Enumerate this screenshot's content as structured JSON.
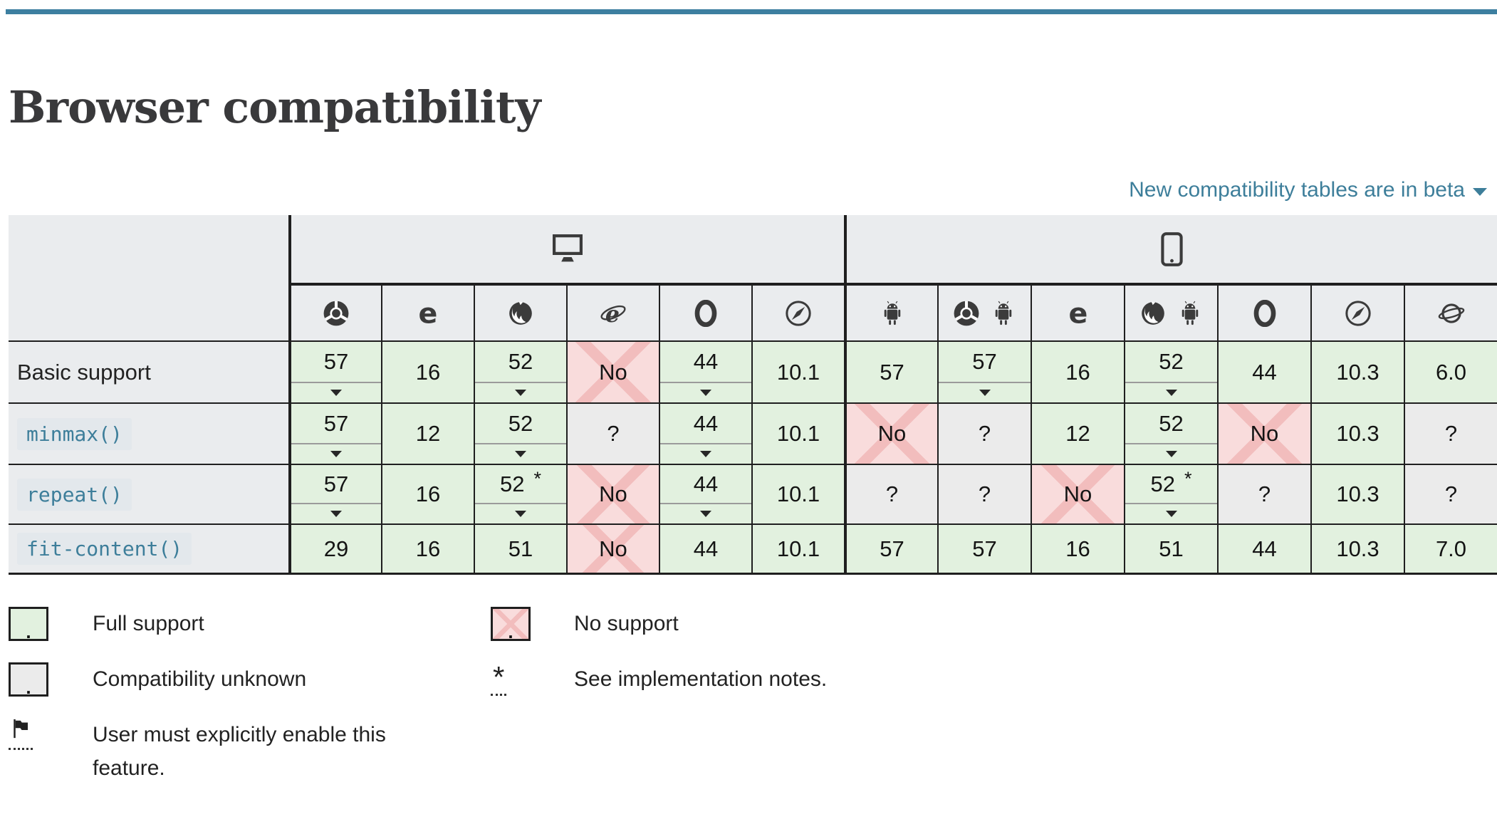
{
  "page": {
    "title": "Browser compatibility",
    "beta_link": {
      "label": "New compatibility tables are in beta",
      "icon": "caret-down-icon"
    }
  },
  "colors": {
    "accent_bar": "#3d7fa0",
    "link": "#3d7e9a",
    "full_support_bg": "#e2f1df",
    "no_support_bg": "#f9dcdc",
    "no_support_x": "#f2bdbd",
    "unknown_bg": "#ebebeb",
    "header_bg": "#eaecee",
    "border": "#1f1f1f"
  },
  "table": {
    "sections": [
      {
        "id": "desktop",
        "icon": "desktop-icon",
        "col_span": 6
      },
      {
        "id": "mobile",
        "icon": "mobile-icon",
        "col_span": 7
      }
    ],
    "columns": [
      {
        "id": "chrome",
        "section": "desktop",
        "icons": [
          "chrome"
        ]
      },
      {
        "id": "edge",
        "section": "desktop",
        "icons": [
          "edge"
        ]
      },
      {
        "id": "firefox",
        "section": "desktop",
        "icons": [
          "firefox"
        ]
      },
      {
        "id": "ie",
        "section": "desktop",
        "icons": [
          "ie"
        ]
      },
      {
        "id": "opera",
        "section": "desktop",
        "icons": [
          "opera"
        ]
      },
      {
        "id": "safari",
        "section": "desktop",
        "icons": [
          "safari"
        ]
      },
      {
        "id": "webview-android",
        "section": "mobile",
        "icons": [
          "android"
        ]
      },
      {
        "id": "chrome-android",
        "section": "mobile",
        "icons": [
          "chrome",
          "android"
        ]
      },
      {
        "id": "edge-mobile",
        "section": "mobile",
        "icons": [
          "edge"
        ]
      },
      {
        "id": "firefox-android",
        "section": "mobile",
        "icons": [
          "firefox",
          "android"
        ]
      },
      {
        "id": "opera-android",
        "section": "mobile",
        "icons": [
          "opera"
        ]
      },
      {
        "id": "safari-ios",
        "section": "mobile",
        "icons": [
          "safari"
        ]
      },
      {
        "id": "samsung-internet",
        "section": "mobile",
        "icons": [
          "samsung"
        ]
      }
    ],
    "rows": [
      {
        "id": "basic_support",
        "label": "Basic support",
        "label_style": "plain",
        "cells": [
          {
            "value": "57",
            "status": "full",
            "history": true
          },
          {
            "value": "16",
            "status": "full",
            "history": false
          },
          {
            "value": "52",
            "status": "full",
            "history": true
          },
          {
            "value": "No",
            "status": "none",
            "history": false
          },
          {
            "value": "44",
            "status": "full",
            "history": true
          },
          {
            "value": "10.1",
            "status": "full",
            "history": false
          },
          {
            "value": "57",
            "status": "full",
            "history": false
          },
          {
            "value": "57",
            "status": "full",
            "history": true
          },
          {
            "value": "16",
            "status": "full",
            "history": false
          },
          {
            "value": "52",
            "status": "full",
            "history": true
          },
          {
            "value": "44",
            "status": "full",
            "history": false
          },
          {
            "value": "10.3",
            "status": "full",
            "history": false
          },
          {
            "value": "6.0",
            "status": "full",
            "history": false
          }
        ]
      },
      {
        "id": "minmax",
        "label": "minmax()",
        "label_style": "code",
        "cells": [
          {
            "value": "57",
            "status": "full",
            "history": true
          },
          {
            "value": "12",
            "status": "full",
            "history": false
          },
          {
            "value": "52",
            "status": "full",
            "history": true
          },
          {
            "value": "?",
            "status": "unknown",
            "history": false
          },
          {
            "value": "44",
            "status": "full",
            "history": true
          },
          {
            "value": "10.1",
            "status": "full",
            "history": false
          },
          {
            "value": "No",
            "status": "none",
            "history": false
          },
          {
            "value": "?",
            "status": "unknown",
            "history": false
          },
          {
            "value": "12",
            "status": "full",
            "history": false
          },
          {
            "value": "52",
            "status": "full",
            "history": true
          },
          {
            "value": "No",
            "status": "none",
            "history": false
          },
          {
            "value": "10.3",
            "status": "full",
            "history": false
          },
          {
            "value": "?",
            "status": "unknown",
            "history": false
          }
        ]
      },
      {
        "id": "repeat",
        "label": "repeat()",
        "label_style": "code",
        "cells": [
          {
            "value": "57",
            "status": "full",
            "history": true
          },
          {
            "value": "16",
            "status": "full",
            "history": false
          },
          {
            "value": "52",
            "status": "full",
            "history": true,
            "note": true
          },
          {
            "value": "No",
            "status": "none",
            "history": false
          },
          {
            "value": "44",
            "status": "full",
            "history": true
          },
          {
            "value": "10.1",
            "status": "full",
            "history": false
          },
          {
            "value": "?",
            "status": "unknown",
            "history": false
          },
          {
            "value": "?",
            "status": "unknown",
            "history": false
          },
          {
            "value": "No",
            "status": "none",
            "history": false
          },
          {
            "value": "52",
            "status": "full",
            "history": true,
            "note": true
          },
          {
            "value": "?",
            "status": "unknown",
            "history": false
          },
          {
            "value": "10.3",
            "status": "full",
            "history": false
          },
          {
            "value": "?",
            "status": "unknown",
            "history": false
          }
        ]
      },
      {
        "id": "fit_content",
        "label": "fit-content()",
        "label_style": "code",
        "cells": [
          {
            "value": "29",
            "status": "full",
            "history": false
          },
          {
            "value": "16",
            "status": "full",
            "history": false
          },
          {
            "value": "51",
            "status": "full",
            "history": false
          },
          {
            "value": "No",
            "status": "none",
            "history": false
          },
          {
            "value": "44",
            "status": "full",
            "history": false
          },
          {
            "value": "10.1",
            "status": "full",
            "history": false
          },
          {
            "value": "57",
            "status": "full",
            "history": false
          },
          {
            "value": "57",
            "status": "full",
            "history": false
          },
          {
            "value": "16",
            "status": "full",
            "history": false
          },
          {
            "value": "51",
            "status": "full",
            "history": false
          },
          {
            "value": "44",
            "status": "full",
            "history": false
          },
          {
            "value": "10.3",
            "status": "full",
            "history": false
          },
          {
            "value": "7.0",
            "status": "full",
            "history": false
          }
        ]
      }
    ]
  },
  "legend": {
    "dot": ".",
    "star_symbol": "*",
    "full": "Full support",
    "none": "No support",
    "unknown": "Compatibility unknown",
    "notes": "See implementation notes.",
    "flag": "User must explicitly enable this feature."
  }
}
